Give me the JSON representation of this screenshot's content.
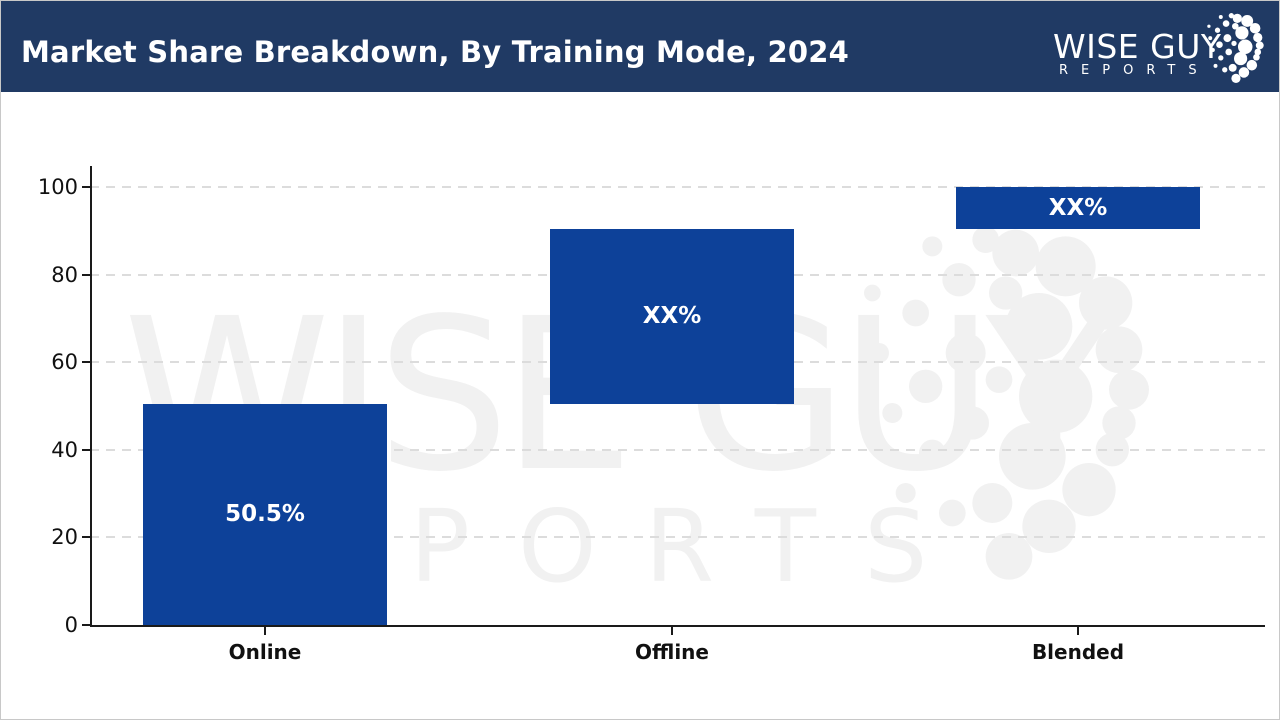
{
  "header": {
    "title": "Market Share Breakdown, By Training Mode, 2024",
    "brand": {
      "line1": "WISE GUY",
      "line2": "REPORTS"
    }
  },
  "watermark": {
    "line1": "WISE GUY",
    "line2": "REPORTS"
  },
  "colors": {
    "header_bg": "#203a64",
    "bar": "#0d4199",
    "grid": "#dcdcdc",
    "axis": "#1a1a1a",
    "bar_label": "#ffffff",
    "watermark": "#f1f1f1"
  },
  "chart_data": {
    "type": "bar",
    "subtype": "waterfall-floating-bars",
    "title": "Market Share Breakdown, By Training Mode, 2024",
    "categories": [
      "Online",
      "Offline",
      "Blended"
    ],
    "segments": [
      {
        "category": "Online",
        "start": 0,
        "end": 50.5,
        "label": "50.5%"
      },
      {
        "category": "Offline",
        "start": 50.5,
        "end": 90.5,
        "label": "XX%"
      },
      {
        "category": "Blended",
        "start": 90.5,
        "end": 100,
        "label": "XX%"
      }
    ],
    "xlabel": "",
    "ylabel": "",
    "ylim": [
      0,
      100
    ],
    "yticks": [
      0,
      20,
      40,
      60,
      80,
      100
    ],
    "grid": "horizontal-dashed",
    "legend": "none"
  }
}
